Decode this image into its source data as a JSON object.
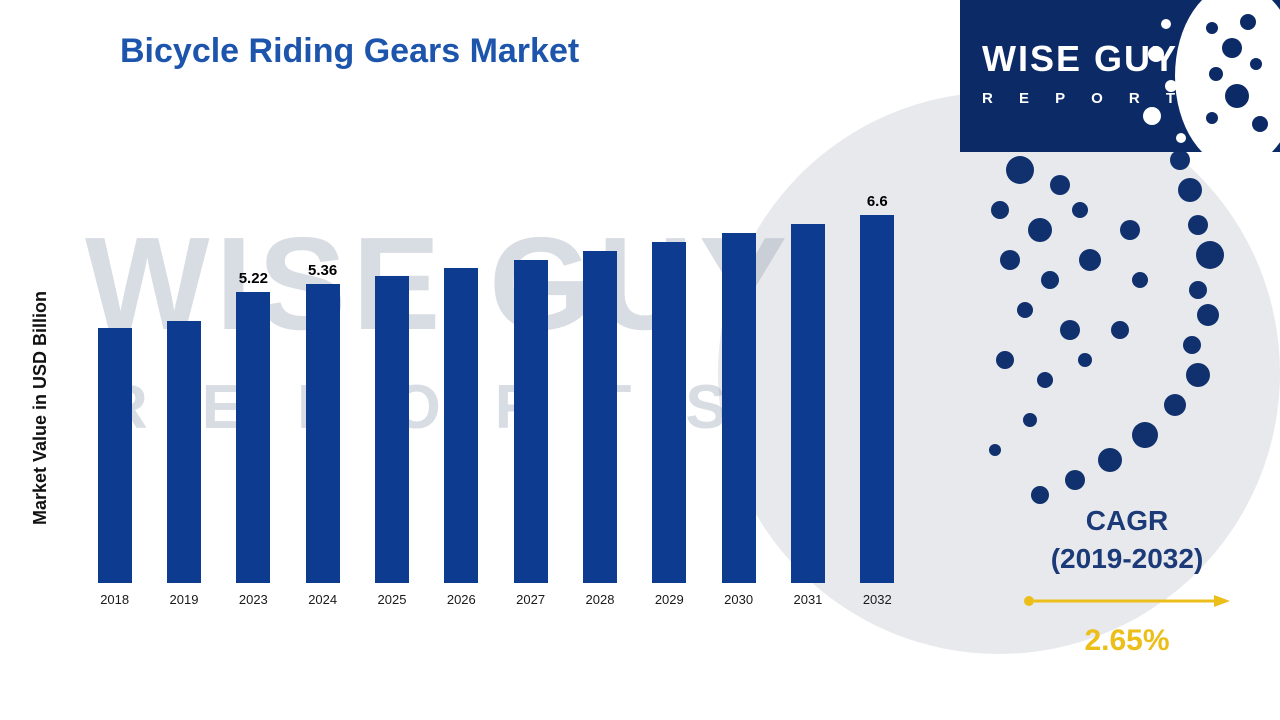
{
  "title": "Bicycle Riding Gears Market",
  "brand": {
    "name": "WISE GUY",
    "sub": "R E P O R T S"
  },
  "watermark": {
    "line1": "WISE GUY",
    "line2": "REPORTS"
  },
  "cagr": {
    "label_line1": "CAGR",
    "label_line2": "(2019-2032)",
    "value": "2.65%"
  },
  "chart_data": {
    "type": "bar",
    "title": "Bicycle Riding Gears Market",
    "xlabel": "",
    "ylabel": "Market Value in USD Billion",
    "categories": [
      "2018",
      "2019",
      "2023",
      "2024",
      "2025",
      "2026",
      "2027",
      "2028",
      "2029",
      "2030",
      "2031",
      "2032"
    ],
    "values": [
      4.58,
      4.7,
      5.22,
      5.36,
      5.5,
      5.65,
      5.8,
      5.95,
      6.11,
      6.27,
      6.44,
      6.6
    ],
    "labeled_points": {
      "2023": "5.22",
      "2024": "5.36",
      "2032": "6.6"
    },
    "bar_color": "#0d3b8f",
    "ylim": [
      0,
      6.9
    ],
    "grid": false,
    "legend": false
  }
}
